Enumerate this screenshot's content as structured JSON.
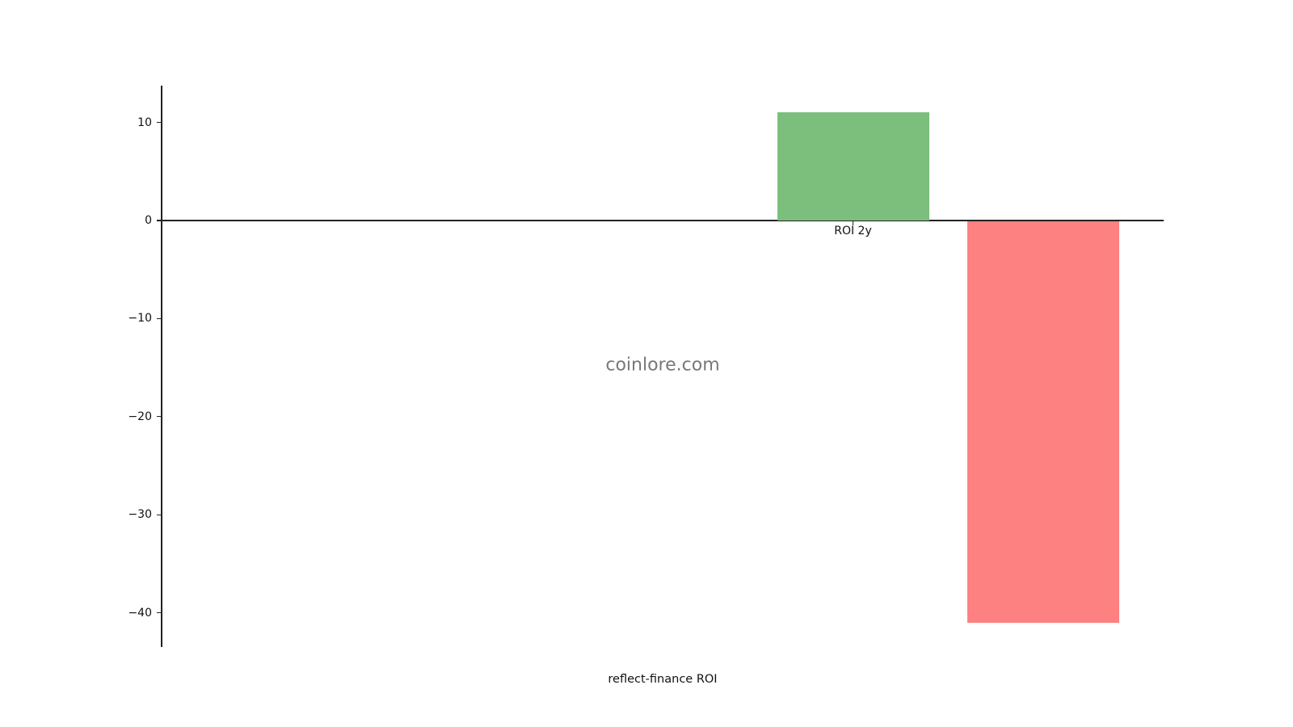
{
  "chart_data": {
    "type": "bar",
    "title": "",
    "xlabel": "reflect-finance ROI",
    "ylabel": "",
    "watermark": "coinlore.com",
    "categories": [
      "ROI 2y",
      ""
    ],
    "values": [
      11,
      -41
    ],
    "bar_colors": [
      "#7cbf7d",
      "#fe8181"
    ],
    "positive_color": "#7cbf7d",
    "negative_color": "#fe8181",
    "yticks": [
      10,
      0,
      -10,
      -20,
      -30,
      -40
    ],
    "ylim": [
      -43.5,
      13.75
    ],
    "grid": false,
    "legend_position": "none",
    "axis_color": "#222222",
    "text_color": "#111111",
    "watermark_color": "#787878",
    "background_color": "#ffffff"
  }
}
